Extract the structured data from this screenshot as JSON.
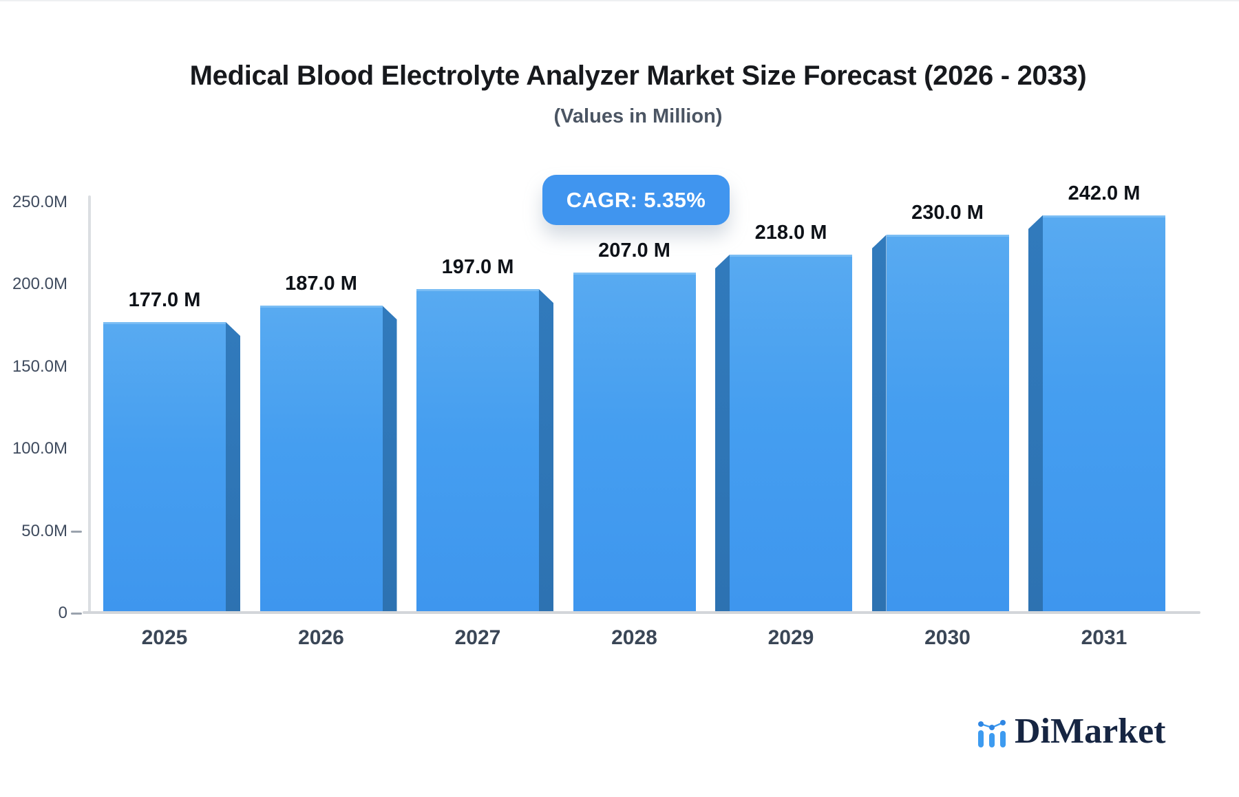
{
  "header": {
    "title": "Medical Blood Electrolyte Analyzer Market Size Forecast (2026 - 2033)",
    "subtitle": "(Values in Million)"
  },
  "badge": {
    "label": "CAGR: 5.35%",
    "background_color": "#4095ef",
    "text_color": "#ffffff"
  },
  "chart_data": {
    "type": "bar",
    "title": "Medical Blood Electrolyte Analyzer Market Size Forecast (2026 - 2033)",
    "subtitle": "(Values in Million)",
    "unit": "Million",
    "cagr": "5.35%",
    "categories": [
      "2025",
      "2026",
      "2027",
      "2028",
      "2029",
      "2030",
      "2031"
    ],
    "values": [
      177.0,
      187.0,
      197.0,
      207.0,
      218.0,
      230.0,
      242.0
    ],
    "value_labels": [
      "177.0 M",
      "187.0 M",
      "197.0 M",
      "207.0 M",
      "218.0 M",
      "230.0 M",
      "242.0 M"
    ],
    "ylim": [
      0,
      250
    ],
    "y_ticks": [
      {
        "value": 250,
        "label": "250.0M",
        "dash": false
      },
      {
        "value": 200,
        "label": "200.0M",
        "dash": false
      },
      {
        "value": 150,
        "label": "150.0M",
        "dash": false
      },
      {
        "value": 100,
        "label": "100.0M",
        "dash": false
      },
      {
        "value": 50,
        "label": "50.0M",
        "dash": true
      },
      {
        "value": 0,
        "label": "0",
        "dash": true
      }
    ],
    "grid": false,
    "legend": false,
    "xlabel": "",
    "ylabel": "",
    "bar_style": {
      "effect": "3d-extrude-toward-center",
      "face_top": "#58aaf1",
      "face_bottom": "#3e96ee",
      "side": "#2e74b4",
      "top_edge": "#7abdf4"
    },
    "axis_color": "#d9dcdf",
    "x_label_color": "#3a4656",
    "y_label_color": "#3f4b5e",
    "value_label_color": "#0e1218"
  },
  "logo": {
    "text": "DiMarket",
    "icon": "bar-line-chart-logo-icon",
    "text_color": "#162542",
    "accent_color": "#3d9bf0"
  }
}
